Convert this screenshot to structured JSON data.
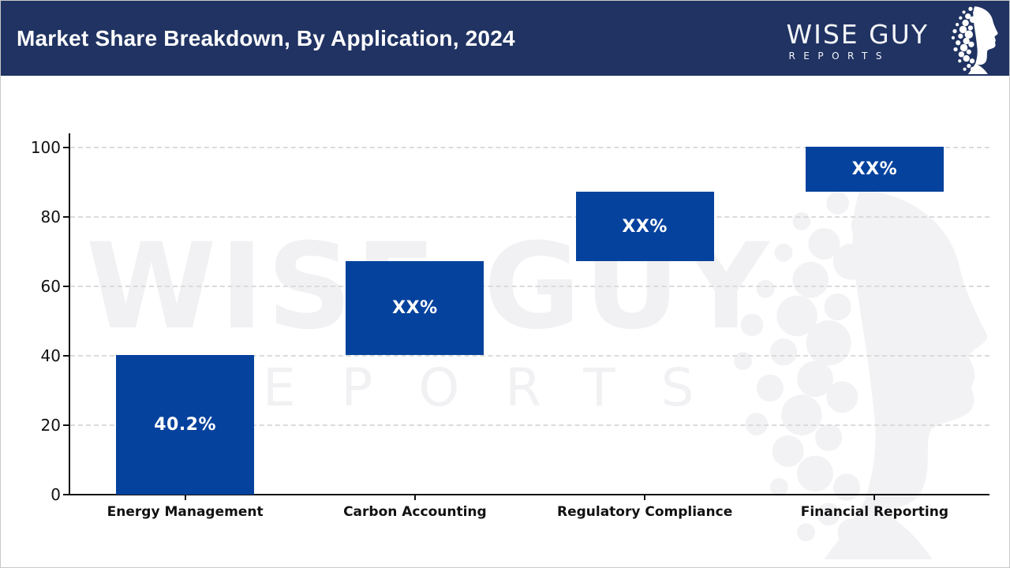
{
  "header": {
    "title": "Market Share Breakdown, By Application, 2024",
    "logo": {
      "name_top": "WISE GUY",
      "name_bottom": "REPORTS"
    }
  },
  "watermark": {
    "text_top": "WISE GUY",
    "text_bottom": "REPORTS"
  },
  "chart_data": {
    "type": "bar",
    "variant": "floating-waterfall",
    "title": "Market Share Breakdown, By Application, 2024",
    "categories": [
      "Energy Management",
      "Carbon Accounting",
      "Regulatory Compliance",
      "Financial Reporting"
    ],
    "segments": [
      {
        "category": "Energy Management",
        "start": 0,
        "end": 40.2,
        "label": "40.2%"
      },
      {
        "category": "Carbon Accounting",
        "start": 40.2,
        "end": 67.2,
        "label": "XX%"
      },
      {
        "category": "Regulatory Compliance",
        "start": 67.2,
        "end": 87.2,
        "label": "XX%"
      },
      {
        "category": "Financial Reporting",
        "start": 87.2,
        "end": 100.2,
        "label": "XX%"
      }
    ],
    "xlabel": "",
    "ylabel": "",
    "yticks": [
      0,
      20,
      40,
      60,
      80,
      100
    ],
    "ylim": [
      0,
      105
    ],
    "grid": "horizontal-dashed",
    "legend": "none",
    "bar_color": "#05429d",
    "bar_label_color": "#ffffff"
  },
  "colors": {
    "header_bg": "#203362",
    "bar": "#05429d",
    "gridline": "#dbdbdb",
    "axis": "#111111",
    "watermark": "#f1f1f3"
  }
}
